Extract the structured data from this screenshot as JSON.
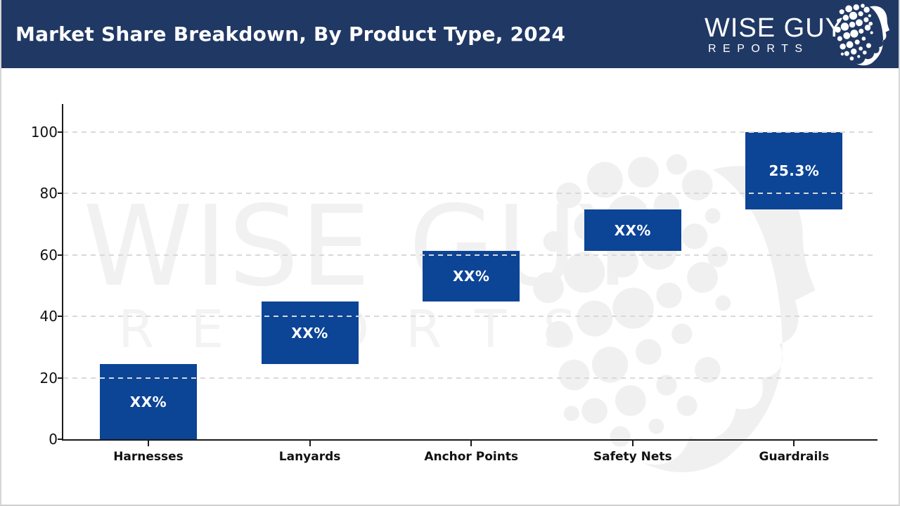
{
  "header": {
    "title": "Market Share Breakdown, By Product Type, 2024",
    "bg_color": "#203864",
    "logo": {
      "line1": "WISE GUY",
      "line2": "REPORTS",
      "icon": "dotted-head-profile"
    }
  },
  "watermark": {
    "line1": "WISE GUY",
    "line2": "REPORTS",
    "icon": "dotted-head-profile"
  },
  "chart_data": {
    "type": "bar",
    "subtype": "waterfall",
    "title": "Market Share Breakdown, By Product Type, 2024",
    "xlabel": "",
    "ylabel": "",
    "categories": [
      "Harnesses",
      "Lanyards",
      "Anchor Points",
      "Safety Nets",
      "Guardrails"
    ],
    "bars": [
      {
        "category": "Harnesses",
        "start": 0,
        "end": 24.4,
        "value": 24.4,
        "label": "XX%"
      },
      {
        "category": "Lanyards",
        "start": 24.4,
        "end": 44.7,
        "value": 20.3,
        "label": "XX%"
      },
      {
        "category": "Anchor Points",
        "start": 44.7,
        "end": 61.2,
        "value": 16.5,
        "label": "XX%"
      },
      {
        "category": "Safety Nets",
        "start": 61.2,
        "end": 74.7,
        "value": 13.5,
        "label": "XX%"
      },
      {
        "category": "Guardrails",
        "start": 74.7,
        "end": 100,
        "value": 25.3,
        "label": "25.3%"
      }
    ],
    "ylim": [
      0,
      100
    ],
    "yticks": [
      0,
      20,
      40,
      60,
      80,
      100
    ],
    "grid": true,
    "grid_style": "dashed",
    "legend": "none",
    "bar_color": "#0c4496",
    "value_label_color": "#ffffff",
    "axis_color": "#1a1a1a",
    "grid_color": "#d9d9d9"
  }
}
